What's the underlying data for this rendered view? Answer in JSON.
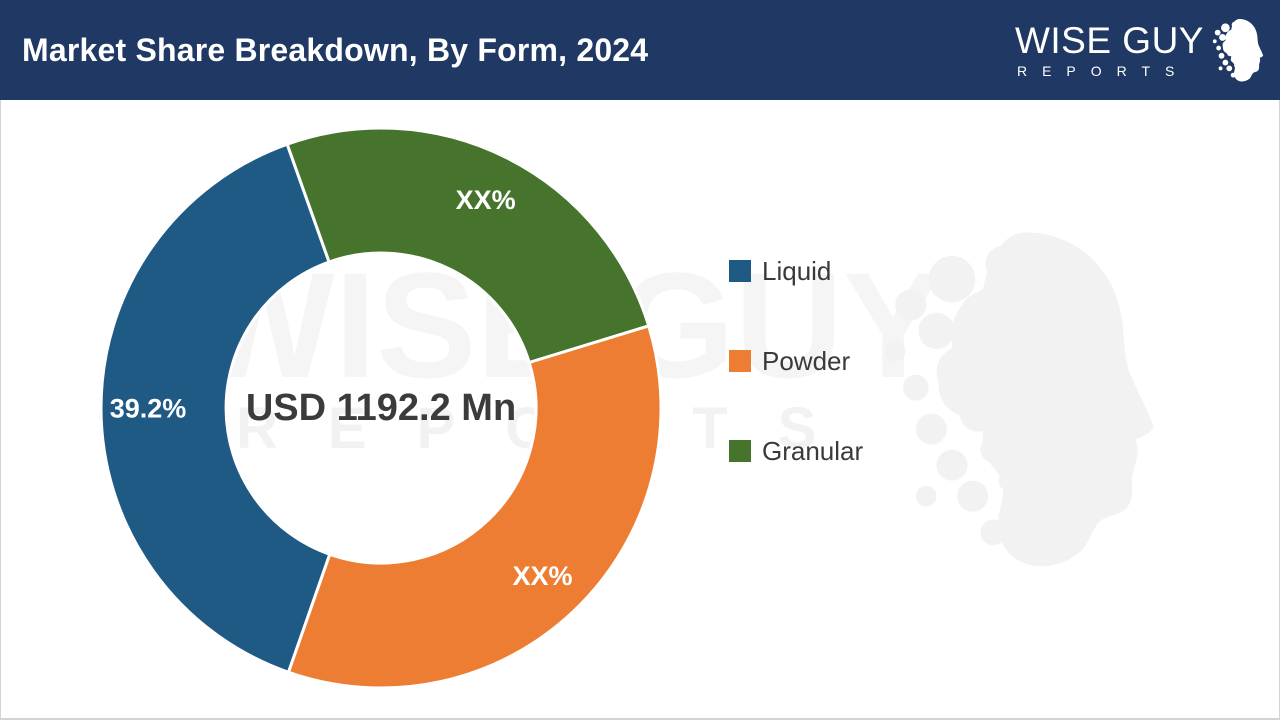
{
  "header": {
    "title": "Market Share Breakdown, By Form, 2024",
    "background_color": "#1f3864",
    "logo": {
      "line1": "WISE GUY",
      "line2": "REPORTS"
    }
  },
  "watermark": {
    "line1": "WISE GUY",
    "line2": "REPORTS"
  },
  "chart_data": {
    "type": "donut",
    "title": "Market Share Breakdown, By Form, 2024",
    "center_label": "USD 1192.2 Mn",
    "start_angle_deg": 199.3,
    "direction": "clockwise",
    "segments": [
      {
        "label": "Liquid",
        "display_value": "39.2%",
        "percent": 39.2,
        "color": "#1f5a85"
      },
      {
        "label": "Granular",
        "display_value": "XX%",
        "percent": 25.7,
        "color": "#47742c"
      },
      {
        "label": "Powder",
        "display_value": "XX%",
        "percent": 35.1,
        "color": "#ec7d33"
      }
    ],
    "legend": [
      {
        "label": "Liquid",
        "color": "#1f5a85"
      },
      {
        "label": "Powder",
        "color": "#ec7d33"
      },
      {
        "label": "Granular",
        "color": "#47742c"
      }
    ],
    "legend_position": "right",
    "separator_color": "#ffffff"
  }
}
